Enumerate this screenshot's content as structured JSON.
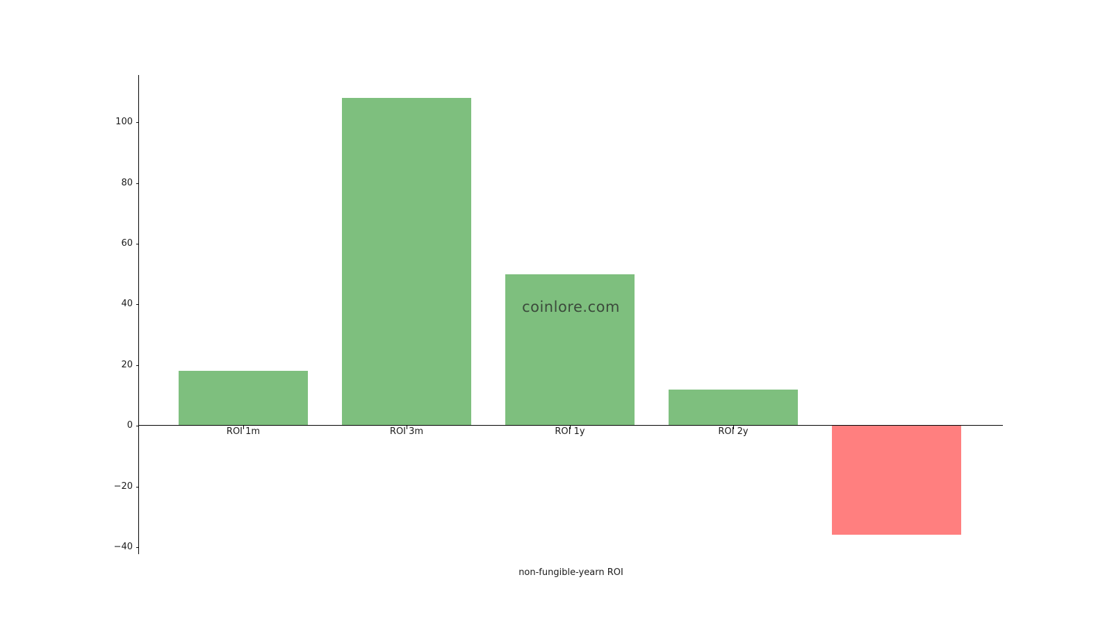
{
  "page": {
    "background_hex": "#ffffff"
  },
  "watermark": {
    "text": "coinlore.com",
    "color_hex": "#3a3a3a"
  },
  "chart_data": {
    "type": "bar",
    "title": "non-fungible-yearn ROI",
    "xlabel": "",
    "ylabel": "",
    "categories": [
      "ROI 1m",
      "ROI 3m",
      "ROI 1y",
      "ROI 2y",
      ""
    ],
    "values": [
      18,
      108,
      50,
      12,
      -36
    ],
    "bar_colors": [
      "#7ebf7e",
      "#7ebf7e",
      "#7ebf7e",
      "#7ebf7e",
      "#ff7f7f"
    ],
    "positive_color": "#7ebf7e",
    "negative_color": "#ff7f7f",
    "axis_color": "#000000",
    "tick_text_color": "#1a1a1a",
    "ytick_values": [
      -40,
      -20,
      0,
      20,
      40,
      60,
      80,
      100
    ],
    "ytick_labels": [
      "−40",
      "−20",
      "0",
      "20",
      "40",
      "60",
      "80",
      "100"
    ],
    "ylim": [
      -42.3,
      115.6
    ],
    "grid": false,
    "legend_position": "none",
    "annotations": [
      "coinlore.com"
    ]
  }
}
